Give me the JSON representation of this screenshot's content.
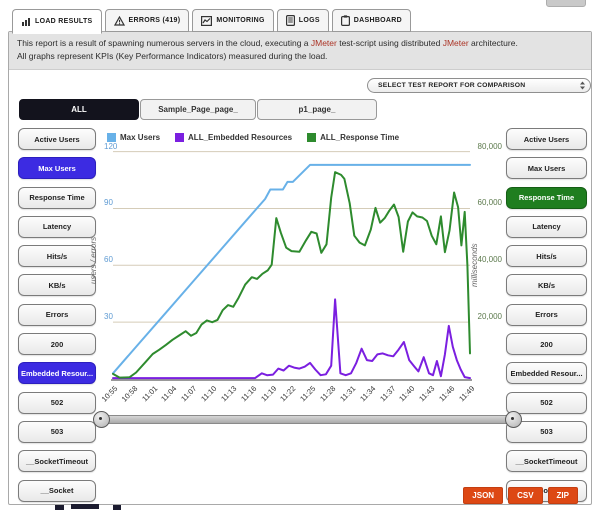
{
  "tabs": [
    {
      "label": "LOAD RESULTS",
      "icon": "bar-chart-icon",
      "active": true
    },
    {
      "label": "ERRORS (419)",
      "icon": "warning-icon",
      "active": false
    },
    {
      "label": "MONITORING",
      "icon": "monitor-chart-icon",
      "active": false
    },
    {
      "label": "LOGS",
      "icon": "document-icon",
      "active": false
    },
    {
      "label": "DASHBOARD",
      "icon": "clipboard-icon",
      "active": false
    }
  ],
  "description": {
    "seg1": "This report is a result of spawning numerous servers in the cloud, executing a ",
    "jmeter1": "JMeter",
    "seg2": " test-script using distributed ",
    "jmeter2": "JMeter",
    "seg3": " architecture.",
    "line2": "All graphs represent KPIs (Key Performance Indicators) measured during the load."
  },
  "comparison_select": {
    "label": "SELECT TEST REPORT FOR COMPARISON"
  },
  "report_tabs": [
    {
      "label": "ALL",
      "active": true
    },
    {
      "label": "Sample_Page_page_",
      "active": false
    },
    {
      "label": "p1_page_",
      "active": false
    }
  ],
  "left_sidebar": {
    "items": [
      {
        "label": "Active Users",
        "selected": null
      },
      {
        "label": "Max Users",
        "selected": "blue"
      },
      {
        "label": "Response Time",
        "selected": null
      },
      {
        "label": "Latency",
        "selected": null
      },
      {
        "label": "Hits/s",
        "selected": null
      },
      {
        "label": "KB/s",
        "selected": null
      },
      {
        "label": "Errors",
        "selected": null
      },
      {
        "label": "200",
        "selected": null
      },
      {
        "label": "Embedded Resour...",
        "selected": "blue"
      },
      {
        "label": "502",
        "selected": null
      },
      {
        "label": "503",
        "selected": null
      },
      {
        "label": "__SocketTimeout",
        "selected": null
      },
      {
        "label": "__Socket",
        "selected": null
      }
    ]
  },
  "right_sidebar": {
    "items": [
      {
        "label": "Active Users",
        "selected": null
      },
      {
        "label": "Max Users",
        "selected": null
      },
      {
        "label": "Response Time",
        "selected": "green"
      },
      {
        "label": "Latency",
        "selected": null
      },
      {
        "label": "Hits/s",
        "selected": null
      },
      {
        "label": "KB/s",
        "selected": null
      },
      {
        "label": "Errors",
        "selected": null
      },
      {
        "label": "200",
        "selected": null
      },
      {
        "label": "Embedded Resour...",
        "selected": null
      },
      {
        "label": "502",
        "selected": null
      },
      {
        "label": "503",
        "selected": null
      },
      {
        "label": "__SocketTimeout",
        "selected": null
      },
      {
        "label": "__Socket",
        "selected": null
      }
    ]
  },
  "export_buttons": [
    {
      "label": "JSON"
    },
    {
      "label": "CSV"
    },
    {
      "label": "ZIP"
    }
  ],
  "chart_data": {
    "type": "line",
    "title": "",
    "legend_position": "top-left",
    "grid": true,
    "left_axis": {
      "label": "users / errors",
      "range": [
        0,
        120
      ],
      "ticks": [
        "120",
        "90",
        "60",
        "30"
      ],
      "tick_color": "#5f9bd3"
    },
    "right_axis": {
      "label": "milliseconds",
      "range": [
        0,
        80000
      ],
      "ticks": [
        "80,000",
        "60,000",
        "40,000",
        "20,000"
      ],
      "tick_color": "#5d7a4d"
    },
    "x_axis": {
      "start": "10:55",
      "end": "11:49",
      "tick_interval_minutes": 3,
      "range_minutes": [
        0,
        54
      ],
      "ticks": [
        "10:55",
        "10:58",
        "11:01",
        "11:04",
        "11:07",
        "11:10",
        "11:13",
        "11:16",
        "11:19",
        "11:22",
        "11:25",
        "11:28",
        "11:31",
        "11:34",
        "11:37",
        "11:40",
        "11:43",
        "11:46",
        "11:49"
      ]
    },
    "series": [
      {
        "name": "Max Users",
        "axis": "left",
        "color": "#68b1e8",
        "points": [
          [
            0,
            3
          ],
          [
            4,
            19
          ],
          [
            8,
            35
          ],
          [
            12,
            51
          ],
          [
            16,
            67
          ],
          [
            20,
            83
          ],
          [
            23,
            95
          ],
          [
            23.8,
            100
          ],
          [
            25.7,
            100
          ],
          [
            26.4,
            104
          ],
          [
            27.2,
            104
          ],
          [
            29.8,
            113
          ],
          [
            54,
            113
          ]
        ]
      },
      {
        "name": "ALL_Embedded Resources",
        "axis": "left",
        "color": "#7b1fe0",
        "points": [
          [
            0,
            0.5
          ],
          [
            21.5,
            0.5
          ],
          [
            22.5,
            3
          ],
          [
            23.3,
            2
          ],
          [
            24.2,
            2.3
          ],
          [
            25,
            5.5
          ],
          [
            25.8,
            4.5
          ],
          [
            26.6,
            7
          ],
          [
            27.4,
            6
          ],
          [
            28.2,
            5.5
          ],
          [
            29,
            6.5
          ],
          [
            29.8,
            8.5
          ],
          [
            30.6,
            5
          ],
          [
            31.4,
            2
          ],
          [
            32.2,
            2.5
          ],
          [
            33,
            7
          ],
          [
            33.6,
            42
          ],
          [
            34.4,
            3
          ],
          [
            35.2,
            2
          ],
          [
            36,
            3
          ],
          [
            36.8,
            8.5
          ],
          [
            37.6,
            16
          ],
          [
            38.4,
            10
          ],
          [
            39.2,
            9.5
          ],
          [
            40,
            13
          ],
          [
            40.8,
            13.5
          ],
          [
            41.6,
            12.5
          ],
          [
            42.4,
            12
          ],
          [
            43.2,
            15.5
          ],
          [
            44,
            19.5
          ],
          [
            44.8,
            10
          ],
          [
            45.6,
            6.5
          ],
          [
            46.2,
            4
          ],
          [
            47,
            11.5
          ],
          [
            47.8,
            3
          ],
          [
            48.4,
            2
          ],
          [
            49,
            9.5
          ],
          [
            49.6,
            1.5
          ],
          [
            50.2,
            13
          ],
          [
            50.8,
            28
          ],
          [
            51.4,
            17
          ],
          [
            52,
            10
          ],
          [
            52.6,
            5
          ],
          [
            53.2,
            1
          ],
          [
            54,
            0.5
          ]
        ]
      },
      {
        "name": "ALL_Response Time",
        "axis": "right",
        "color": "#2e8b2e",
        "points": [
          [
            0,
            1800
          ],
          [
            1,
            500
          ],
          [
            2.5,
            600
          ],
          [
            3.5,
            2300
          ],
          [
            5,
            6200
          ],
          [
            6,
            8800
          ],
          [
            7,
            10300
          ],
          [
            8,
            12000
          ],
          [
            9,
            13800
          ],
          [
            10,
            15300
          ],
          [
            11,
            16800
          ],
          [
            11.8,
            15200
          ],
          [
            12.6,
            16200
          ],
          [
            13.4,
            19200
          ],
          [
            14.2,
            20600
          ],
          [
            15,
            20000
          ],
          [
            15.8,
            20800
          ],
          [
            16.6,
            24200
          ],
          [
            17.4,
            26000
          ],
          [
            18.2,
            25400
          ],
          [
            19,
            28600
          ],
          [
            20,
            33200
          ],
          [
            21,
            35800
          ],
          [
            21.8,
            35200
          ],
          [
            22.6,
            37000
          ],
          [
            23.4,
            38200
          ],
          [
            24,
            40200
          ],
          [
            24.7,
            56600
          ],
          [
            25.4,
            51400
          ],
          [
            26.2,
            46200
          ],
          [
            27,
            45000
          ],
          [
            28.2,
            44800
          ],
          [
            29.2,
            48800
          ],
          [
            30,
            51800
          ],
          [
            30.8,
            51200
          ],
          [
            31.5,
            44400
          ],
          [
            32.3,
            47400
          ],
          [
            33,
            63800
          ],
          [
            33.6,
            72800
          ],
          [
            34.5,
            71800
          ],
          [
            35,
            70400
          ],
          [
            35.8,
            61800
          ],
          [
            36.5,
            50400
          ],
          [
            37.3,
            48000
          ],
          [
            38.1,
            47000
          ],
          [
            39,
            52600
          ],
          [
            39.7,
            60200
          ],
          [
            40.4,
            55000
          ],
          [
            41.1,
            56600
          ],
          [
            41.8,
            59200
          ],
          [
            42.5,
            61400
          ],
          [
            43.2,
            57000
          ],
          [
            43.9,
            44800
          ],
          [
            44.6,
            55400
          ],
          [
            45.3,
            58600
          ],
          [
            46,
            57200
          ],
          [
            46.8,
            56800
          ],
          [
            47.5,
            55600
          ],
          [
            48.2,
            50400
          ],
          [
            48.9,
            47400
          ],
          [
            49.6,
            57200
          ],
          [
            50.2,
            44600
          ],
          [
            50.9,
            52200
          ],
          [
            51.6,
            65600
          ],
          [
            52.2,
            60400
          ],
          [
            52.7,
            47000
          ],
          [
            53.2,
            58800
          ],
          [
            53.6,
            40000
          ],
          [
            54,
            9000
          ]
        ]
      }
    ],
    "colors": {
      "grid": "#d5ccb8",
      "baseline": "#999999",
      "selected_blue": "#3c2be2",
      "selected_green": "#1f7e1f",
      "export_orange": "#dd4814",
      "jmeter_red": "#ab3325"
    }
  }
}
